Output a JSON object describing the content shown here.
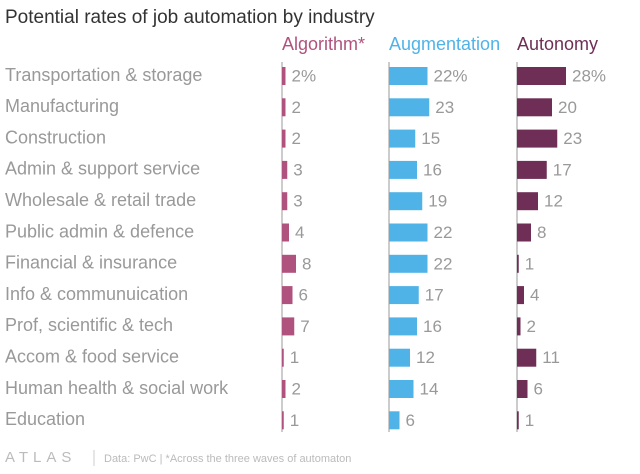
{
  "chart_data": {
    "type": "bar",
    "orientation": "horizontal",
    "layout": "small-multiples",
    "title": "Potential rates of job automation by industry",
    "categories": [
      "Transportation & storage",
      "Manufacturing",
      "Construction",
      "Admin & support service",
      "Wholesale & retail trade",
      "Public admin & defence",
      "Financial & insurance",
      "Info & communuication",
      "Prof, scientific & tech",
      "Accom & food service",
      "Human health & social work",
      "Education"
    ],
    "series": [
      {
        "name": "Algorithm*",
        "color": "#b0527e",
        "values": [
          2,
          2,
          2,
          3,
          3,
          4,
          8,
          6,
          7,
          1,
          2,
          1
        ],
        "value_labels": [
          "2%",
          "2",
          "2",
          "3",
          "3",
          "4",
          "8",
          "6",
          "7",
          "1",
          "2",
          "1"
        ]
      },
      {
        "name": "Augmentation",
        "color": "#4fb3e8",
        "values": [
          22,
          23,
          15,
          16,
          19,
          22,
          22,
          17,
          16,
          12,
          14,
          6
        ],
        "value_labels": [
          "22%",
          "23",
          "15",
          "16",
          "19",
          "22",
          "22",
          "17",
          "16",
          "12",
          "14",
          "6"
        ]
      },
      {
        "name": "Autonomy",
        "color": "#6e2e55",
        "values": [
          28,
          20,
          23,
          17,
          12,
          8,
          1,
          4,
          2,
          11,
          6,
          1
        ],
        "value_labels": [
          "28%",
          "20",
          "23",
          "17",
          "12",
          "8",
          "1",
          "4",
          "2",
          "11",
          "6",
          "1"
        ]
      }
    ],
    "brand": "ATLAS",
    "source": "Data: PwC | *Across the three waves of automaton"
  }
}
